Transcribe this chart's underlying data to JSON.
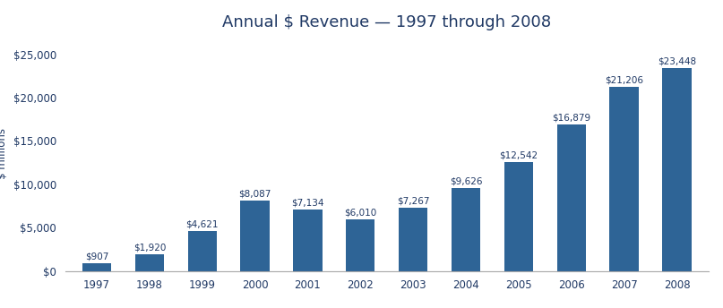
{
  "title": "Annual $ Revenue — 1997 through 2008",
  "ylabel": "$ millions",
  "years": [
    1997,
    1998,
    1999,
    2000,
    2001,
    2002,
    2003,
    2004,
    2005,
    2006,
    2007,
    2008
  ],
  "values": [
    907,
    1920,
    4621,
    8087,
    7134,
    6010,
    7267,
    9626,
    12542,
    16879,
    21206,
    23448
  ],
  "labels": [
    "$907",
    "$1,920",
    "$4,621",
    "$8,087",
    "$7,134",
    "$6,010",
    "$7,267",
    "$9,626",
    "$12,542",
    "$16,879",
    "$21,206",
    "$23,448"
  ],
  "bar_color": "#2E6496",
  "background_color": "#FFFFFF",
  "title_color": "#1F3864",
  "label_color": "#1F3864",
  "ylabel_color": "#1F3864",
  "tick_color": "#1F3864",
  "ylim": [
    0,
    27000
  ],
  "yticks": [
    0,
    5000,
    10000,
    15000,
    20000,
    25000
  ],
  "title_fontsize": 13,
  "label_fontsize": 7.5,
  "axis_fontsize": 8.5,
  "bar_width": 0.55
}
